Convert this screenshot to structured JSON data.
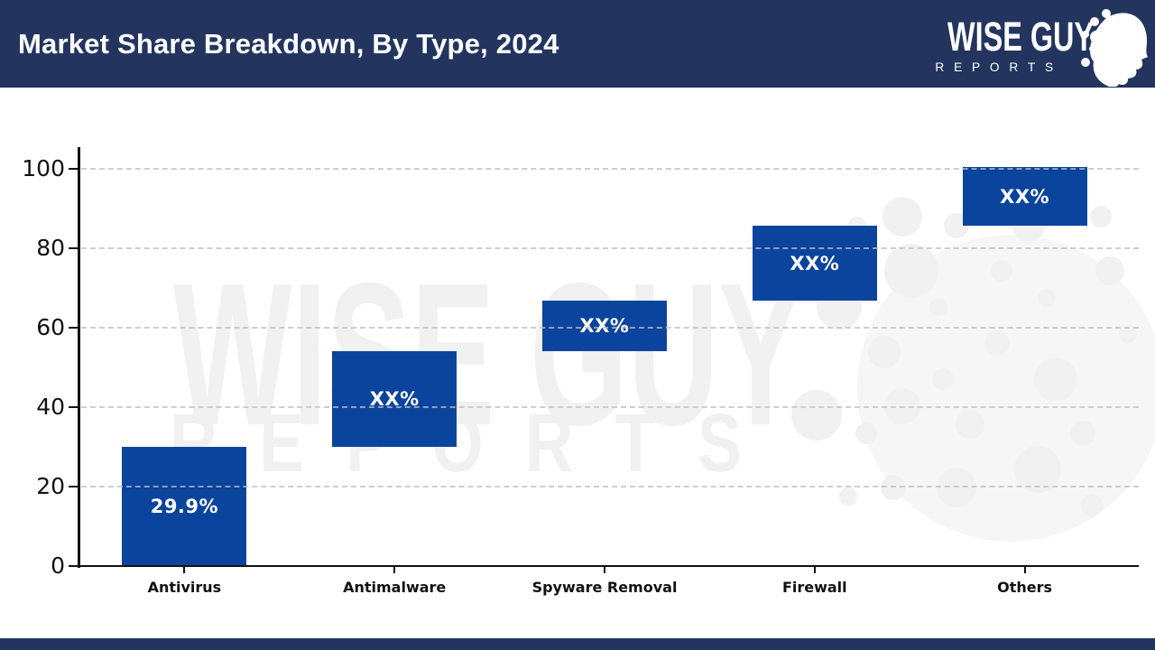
{
  "header": {
    "title": "Market Share Breakdown, By Type, 2024",
    "logo": {
      "wordmark": "WISE GUY",
      "subtext": "REPORTS"
    }
  },
  "watermark": {
    "line1": "WISE GUY",
    "line2": "REPORTS"
  },
  "icons": {
    "logo_head": "dotted-head-profile-icon"
  },
  "colors": {
    "header_bg": "#23355f",
    "footer_bg": "#23355f",
    "bar": "#0a449c",
    "bar_label_text": "#ffffff",
    "axis": "#111111",
    "grid": "#cccccc",
    "watermark": "#f1f1f1",
    "title_text": "#ffffff"
  },
  "chart_data": {
    "type": "bar",
    "subtype": "waterfall",
    "title": "Market Share Breakdown, By Type, 2024",
    "xlabel": "",
    "ylabel": "",
    "ylim": [
      0,
      105
    ],
    "grid": "horizontal-dashed",
    "legend": "none",
    "categories": [
      "Antivirus",
      "Antimalware",
      "Spyware Removal",
      "Firewall",
      "Others"
    ],
    "yticks": [
      0,
      20,
      40,
      60,
      80,
      100
    ],
    "ytick_labels": [
      "0",
      "20",
      "40",
      "60",
      "80",
      "100"
    ],
    "segments": [
      {
        "category": "Antivirus",
        "start": 0,
        "end": 29.9,
        "label": "29.9%"
      },
      {
        "category": "Antimalware",
        "start": 29.9,
        "end": 54.0,
        "label": "XX%"
      },
      {
        "category": "Spyware Removal",
        "start": 54.0,
        "end": 66.7,
        "label": "XX%"
      },
      {
        "category": "Firewall",
        "start": 66.7,
        "end": 85.7,
        "label": "XX%"
      },
      {
        "category": "Others",
        "start": 85.7,
        "end": 100.4,
        "label": "XX%"
      }
    ]
  }
}
